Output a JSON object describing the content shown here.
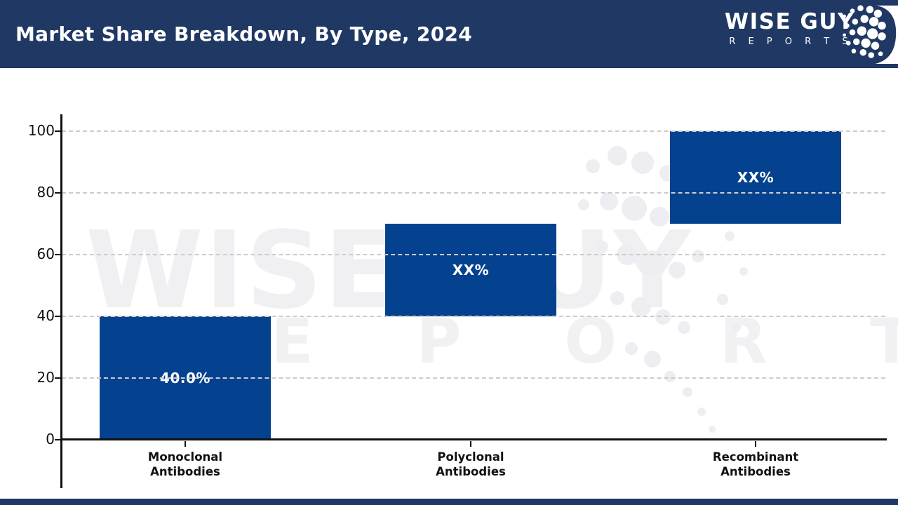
{
  "header": {
    "title": "Market Share Breakdown, By Type, 2024",
    "logo_line1": "WISE GUY",
    "logo_line2": "R E P O R T S"
  },
  "watermark": {
    "line1": "WISE GUY",
    "line2": "R E P O R T S"
  },
  "chart_data": {
    "type": "bar",
    "variant": "floating-segment-bars",
    "title": "Market Share Breakdown, By Type, 2024",
    "categories": [
      "Monoclonal Antibodies",
      "Polyclonal Antibodies",
      "Recombinant Antibodies"
    ],
    "bars": [
      {
        "category_lines": [
          "Monoclonal",
          "Antibodies"
        ],
        "start": 0,
        "end": 40,
        "label": "40.0%"
      },
      {
        "category_lines": [
          "Polyclonal",
          "Antibodies"
        ],
        "start": 40,
        "end": 70,
        "label": "XX%"
      },
      {
        "category_lines": [
          "Recombinant",
          "Antibodies"
        ],
        "start": 70,
        "end": 100,
        "label": "XX%"
      }
    ],
    "ylim": [
      0,
      100
    ],
    "yticks": [
      0,
      20,
      40,
      60,
      80,
      100
    ],
    "grid": "horizontal-dashed",
    "legend": "none"
  },
  "colors": {
    "header_bg": "#1f3864",
    "footer_bg": "#1f3864",
    "bar_fill": "#04418f",
    "grid_line": "#cccccc",
    "axis_line": "#111111",
    "watermark": "#f0f0f3",
    "value_label": "#ffffff"
  }
}
